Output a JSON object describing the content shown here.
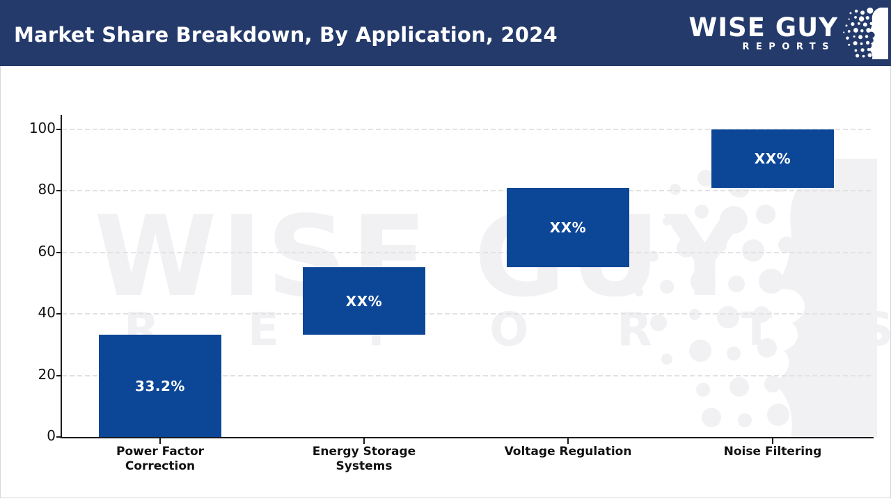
{
  "header": {
    "title": "Market Share Breakdown, By Application, 2024",
    "logo": {
      "line1": "WISE GUY",
      "line2": "REPORTS"
    }
  },
  "watermark": {
    "line1": "WISE GUY",
    "line2": "R E P O R T S"
  },
  "icons": {
    "logo_face": "wiseguy-face-icon"
  },
  "colors": {
    "header_bg": "#243a6b",
    "bar": "#0c4697",
    "bar_label": "#ffffff",
    "axis": "#1a1a1a",
    "grid": "#e2e2e2",
    "watermark": "#f1f1f4",
    "panel_border": "#d7d7d7"
  },
  "chart_data": {
    "type": "bar",
    "subtype": "waterfall",
    "title": "Market Share Breakdown, By Application, 2024",
    "unit": "%",
    "categories": [
      {
        "label": "Power Factor Correction",
        "lines": [
          "Power Factor",
          "Correction"
        ],
        "start": 0,
        "end": 33.2,
        "value": 33.2,
        "bar_label": "33.2%"
      },
      {
        "label": "Energy Storage Systems",
        "lines": [
          "Energy Storage",
          "Systems"
        ],
        "start": 33.2,
        "end": 55.1,
        "value": 21.9,
        "bar_label": "XX%"
      },
      {
        "label": "Voltage Regulation",
        "lines": [
          "Voltage Regulation"
        ],
        "start": 55.1,
        "end": 80.9,
        "value": 25.8,
        "bar_label": "XX%"
      },
      {
        "label": "Noise Filtering",
        "lines": [
          "Noise Filtering"
        ],
        "start": 80.9,
        "end": 100,
        "value": 19.1,
        "bar_label": "XX%"
      }
    ],
    "ylim": [
      0,
      100
    ],
    "yticks": [
      0,
      20,
      40,
      60,
      80,
      100
    ],
    "grid": "horizontal-dashed",
    "legend": "none",
    "bar_color": "#0c4697"
  }
}
